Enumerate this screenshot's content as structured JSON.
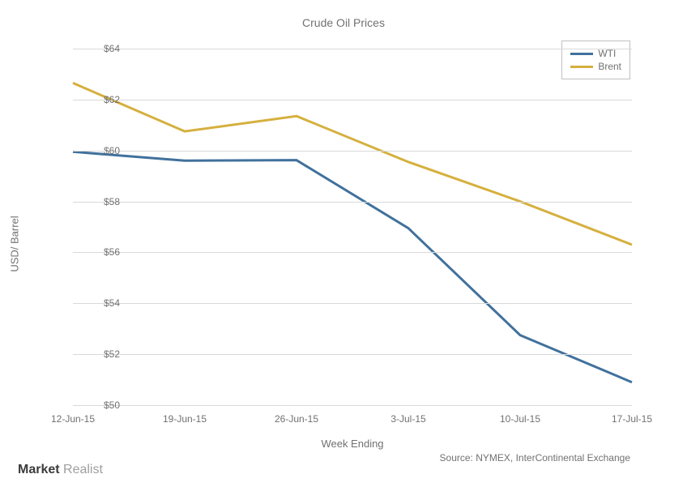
{
  "chart": {
    "type": "line",
    "title": "Crude Oil Prices",
    "title_fontsize": 14,
    "title_color": "#717171",
    "background_color": "#ffffff",
    "grid_color": "#d9d9d9",
    "axis_color": "#717171",
    "label_fontsize": 13,
    "tick_fontsize": 12,
    "xlabel": "Week Ending",
    "ylabel": "USD/ Barrel",
    "ylim": [
      50,
      64
    ],
    "ytick_step": 2,
    "yticks": [
      "$50",
      "$52",
      "$54",
      "$56",
      "$58",
      "$60",
      "$62",
      "$64"
    ],
    "xcategories": [
      "12-Jun-15",
      "19-Jun-15",
      "26-Jun-15",
      "3-Jul-15",
      "10-Jul-15",
      "17-Jul-15"
    ],
    "series": [
      {
        "name": "WTI",
        "color": "#41719c",
        "line_width": 3,
        "values": [
          59.95,
          59.6,
          59.62,
          56.95,
          52.75,
          50.9
        ]
      },
      {
        "name": "Brent",
        "color": "#d5b03e",
        "line_width": 3,
        "values": [
          62.65,
          60.75,
          61.35,
          59.55,
          58.0,
          56.3
        ]
      }
    ],
    "legend": {
      "position": "top-right",
      "border_color": "#c0c0c0"
    },
    "source": "Source: NYMEX, InterContinental Exchange",
    "watermark_a": "Market",
    "watermark_b": " Realist"
  }
}
